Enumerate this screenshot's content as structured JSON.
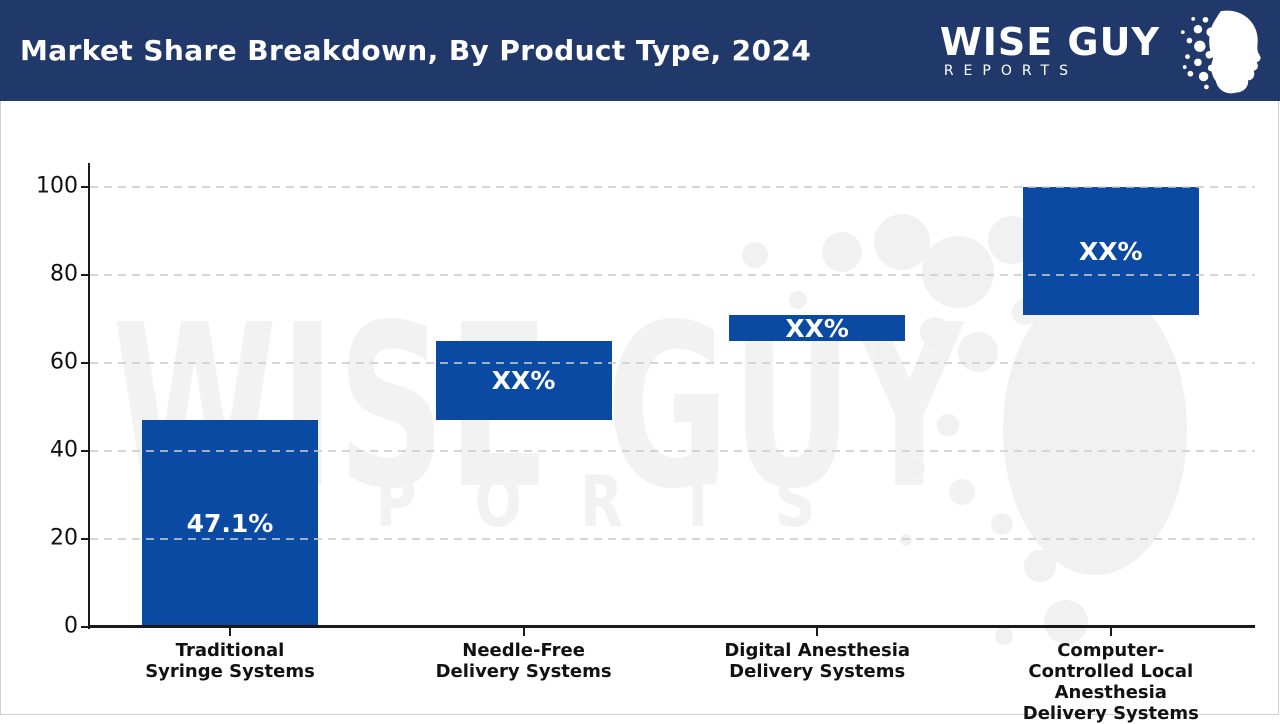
{
  "header": {
    "title": "Market Share Breakdown, By Product Type, 2024"
  },
  "logo": {
    "name": "WISE GUY",
    "subtext": "REPORTS"
  },
  "watermark": {
    "line1": "WISE GUY",
    "line2": "REPORTS"
  },
  "chart_data": {
    "type": "bar",
    "subtype": "waterfall",
    "title": "Market Share Breakdown, By Product Type, 2024",
    "xlabel": "",
    "ylabel": "",
    "ylim": [
      0,
      105
    ],
    "y_ticks": [
      0,
      20,
      40,
      60,
      80,
      100
    ],
    "grid": "horizontal-dashed",
    "legend": "none",
    "bar_color": "#0a4aa3",
    "bar_label_color": "#ffffff",
    "categories": [
      "Traditional\nSyringe Systems",
      "Needle-Free\nDelivery Systems",
      "Digital Anesthesia\nDelivery Systems",
      "Computer-\nControlled Local\nAnesthesia\nDelivery Systems"
    ],
    "segments": [
      {
        "category": "Traditional Syringe Systems",
        "start": 0,
        "end": 47.1,
        "label": "47.1%"
      },
      {
        "category": "Needle-Free Delivery Systems",
        "start": 47.1,
        "end": 64.9,
        "label": "XX%"
      },
      {
        "category": "Digital Anesthesia Delivery Systems",
        "start": 64.9,
        "end": 70.9,
        "label": "XX%"
      },
      {
        "category": "Computer-Controlled Local Anesthesia Delivery Systems",
        "start": 70.9,
        "end": 100,
        "label": "XX%"
      }
    ]
  }
}
